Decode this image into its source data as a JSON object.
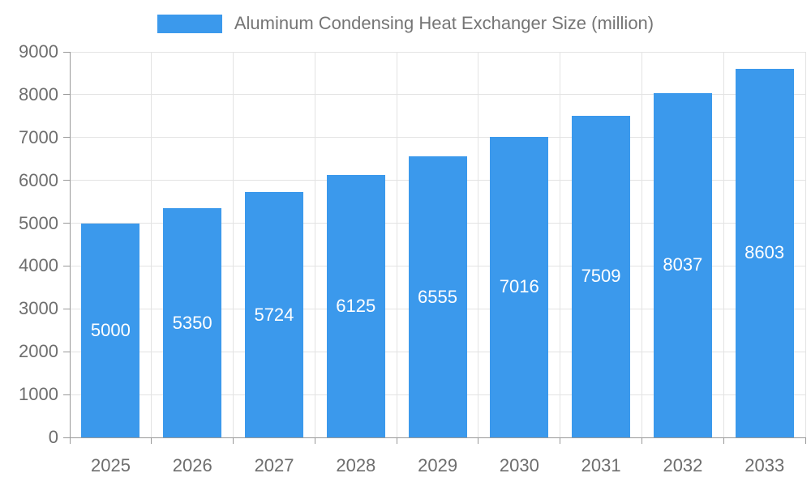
{
  "legend": {
    "label": "Aluminum Condensing Heat Exchanger Size (million)"
  },
  "colors": {
    "bar": "#3b99ec",
    "grid_line": "#e3e3e3",
    "axis_line": "#999999",
    "axis_text": "#6e6e6e",
    "legend_text": "#757575",
    "bar_label_text": "#ffffff",
    "background": "#ffffff"
  },
  "chart_data": {
    "type": "bar",
    "title": "Aluminum Condensing Heat Exchanger Size (million)",
    "categories": [
      "2025",
      "2026",
      "2027",
      "2028",
      "2029",
      "2030",
      "2031",
      "2032",
      "2033"
    ],
    "values": [
      5000,
      5350,
      5724,
      6125,
      6555,
      7016,
      7509,
      8037,
      8603
    ],
    "series_name": "Aluminum Condensing Heat Exchanger Size (million)",
    "xlabel": "",
    "ylabel": "",
    "ylim": [
      0,
      9000
    ],
    "y_ticks": [
      0,
      1000,
      2000,
      3000,
      4000,
      5000,
      6000,
      7000,
      8000,
      9000
    ],
    "grid": true,
    "legend_position": "top-center",
    "value_labels": "inside-middle"
  }
}
